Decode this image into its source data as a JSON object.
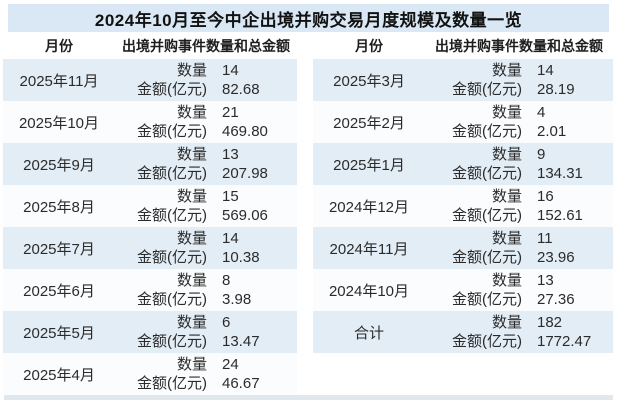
{
  "title": "2024年10月至今中企出境并购交易月度规模及数量一览",
  "colors": {
    "title_bar_bg": "#d9e8f4",
    "row_blue_bg": "#e3edf6",
    "row_alt_bg": "#fbfcfd",
    "bottom_strip": "#e0e8ee",
    "text": "#2b2b2b"
  },
  "chart_data": {
    "type": "table",
    "title": "2024年10月至今中企出境并购交易月度规模及数量一览",
    "column_headers": [
      "月份",
      "出境并购事件数量和总金额"
    ],
    "row_labels": {
      "qty": "数量",
      "amount": "金额(亿元)"
    },
    "left_rows": [
      {
        "month": "2025年11月",
        "qty": "14",
        "amount": "82.68"
      },
      {
        "month": "2025年10月",
        "qty": "21",
        "amount": "469.80"
      },
      {
        "month": "2025年9月",
        "qty": "13",
        "amount": "207.98"
      },
      {
        "month": "2025年8月",
        "qty": "15",
        "amount": "569.06"
      },
      {
        "month": "2025年7月",
        "qty": "14",
        "amount": "10.38"
      },
      {
        "month": "2025年6月",
        "qty": "8",
        "amount": "3.98"
      },
      {
        "month": "2025年5月",
        "qty": "6",
        "amount": "13.47"
      },
      {
        "month": "2025年4月",
        "qty": "24",
        "amount": "46.67"
      }
    ],
    "right_rows": [
      {
        "month": "2025年3月",
        "qty": "14",
        "amount": "28.19"
      },
      {
        "month": "2025年2月",
        "qty": "4",
        "amount": "2.01"
      },
      {
        "month": "2025年1月",
        "qty": "9",
        "amount": "134.31"
      },
      {
        "month": "2024年12月",
        "qty": "16",
        "amount": "152.61"
      },
      {
        "month": "2024年11月",
        "qty": "11",
        "amount": "23.96"
      },
      {
        "month": "2024年10月",
        "qty": "13",
        "amount": "27.36"
      },
      {
        "month": "合计",
        "qty": "182",
        "amount": "1772.47"
      }
    ]
  }
}
